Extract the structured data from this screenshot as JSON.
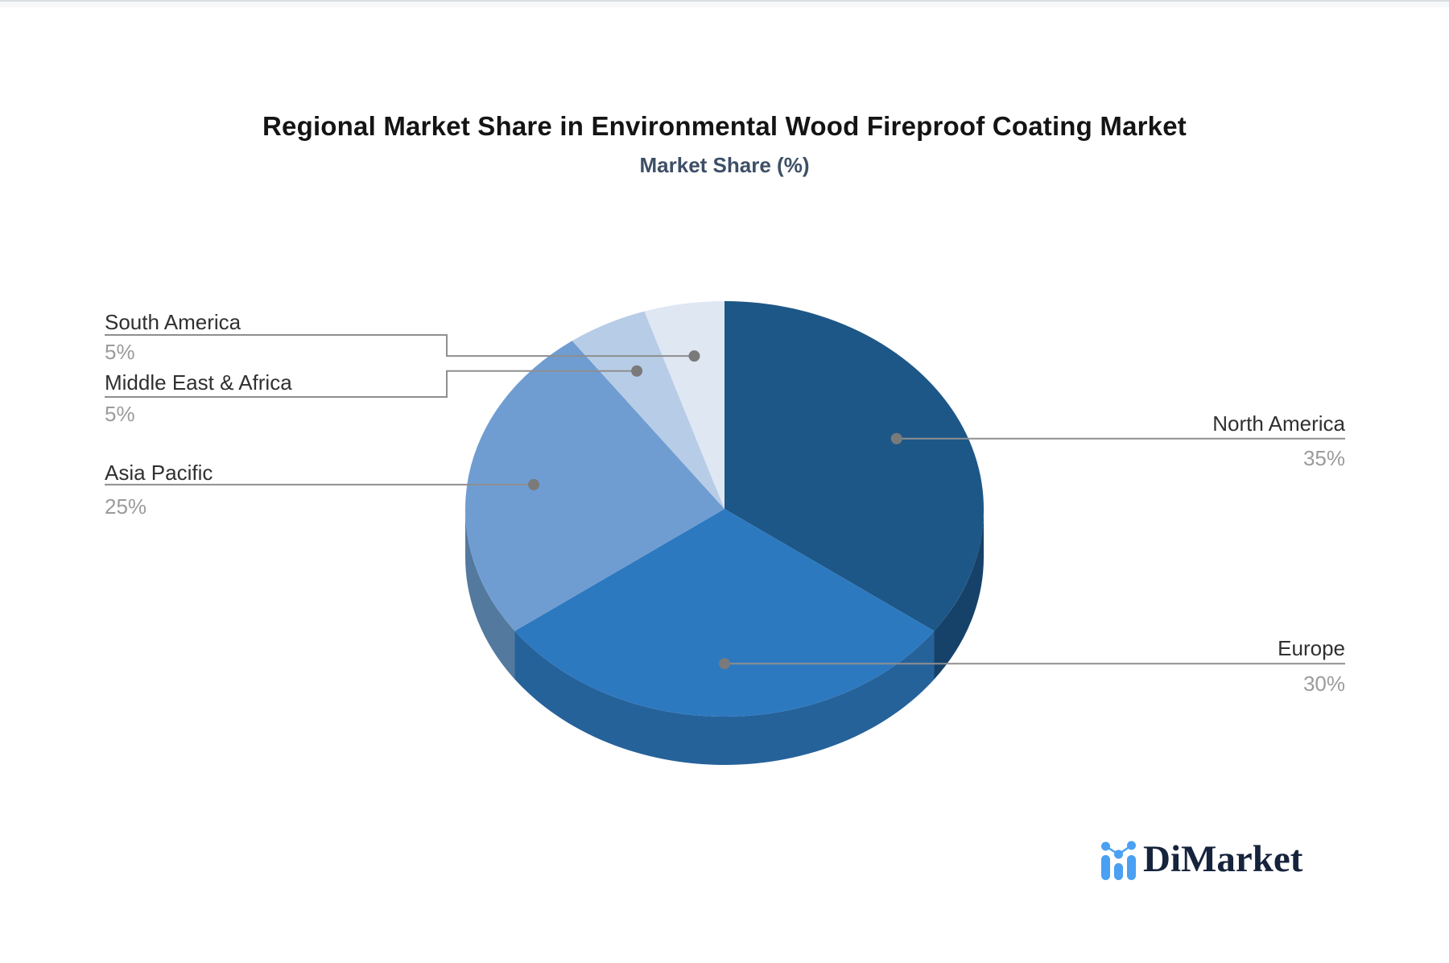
{
  "chart_data": {
    "type": "pie",
    "title": "Regional Market Share in Environmental Wood Fireproof Coating Market",
    "subtitle": "Market Share (%)",
    "unit": "%",
    "style": "3d-pie",
    "start_angle_deg": 0,
    "direction": "clockwise",
    "legend_position": "callout-labels",
    "labels": [
      "North America",
      "Europe",
      "Asia Pacific",
      "Middle East & Africa",
      "South America"
    ],
    "values": [
      35,
      30,
      25,
      5,
      5
    ],
    "colors": [
      "#1d5787",
      "#2d79c0",
      "#6f9dd2",
      "#b7cce6",
      "#dfe7f3"
    ],
    "side_colors": [
      "#16426a",
      "#26629a",
      "#53799f",
      "#8fa8c4",
      "#b8c3d4"
    ],
    "leader_line_color": "#8f8f8f",
    "leader_dot_color": "#7a7a7a",
    "callouts": {
      "north_america": {
        "label": "North America",
        "value": "35%"
      },
      "europe": {
        "label": "Europe",
        "value": "30%"
      },
      "asia_pacific": {
        "label": "Asia Pacific",
        "value": "25%"
      },
      "middle_east_africa": {
        "label": "Middle East & Africa",
        "value": "5%"
      },
      "south_america": {
        "label": "South America",
        "value": "5%"
      }
    }
  },
  "logo": {
    "text": "DiMarket",
    "icon": "bar-chart-logo-icon",
    "icon_color": "#4aa0f2",
    "text_color": "#16233c"
  }
}
